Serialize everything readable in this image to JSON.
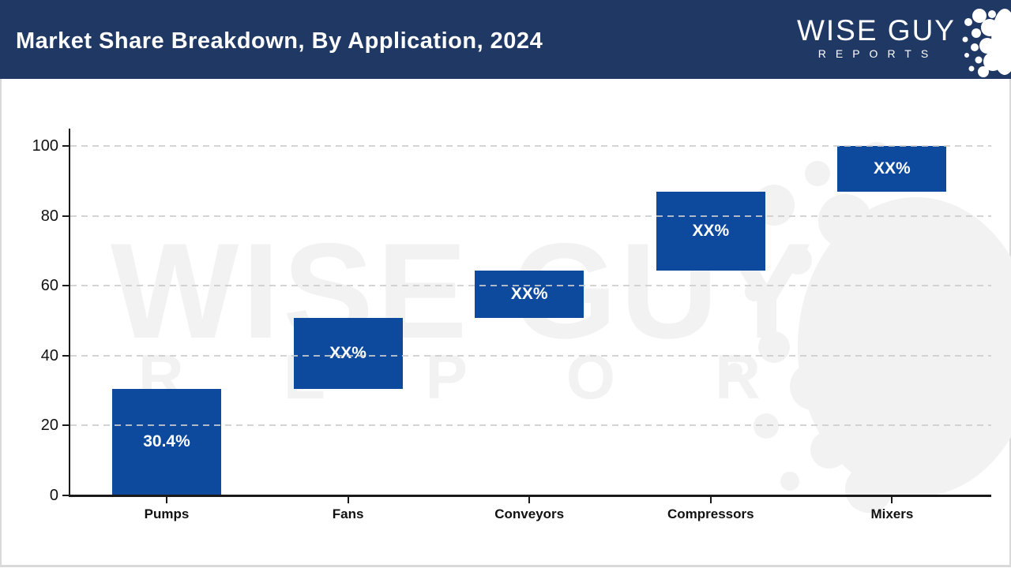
{
  "header": {
    "title": "Market Share Breakdown, By Application, 2024",
    "bg_color": "#1f3864",
    "logo": {
      "line1": "WISE GUY",
      "line2": "REPORTS"
    }
  },
  "watermark": {
    "line1": "WISE GUY",
    "line2": "REPORTS"
  },
  "chart_data": {
    "type": "bar",
    "subtype": "waterfall-floating-bars",
    "title": "Market Share Breakdown, By Application, 2024",
    "categories": [
      "Pumps",
      "Fans",
      "Conveyors",
      "Compressors",
      "Mixers"
    ],
    "segments": [
      {
        "category": "Pumps",
        "start": 0,
        "end": 30.4,
        "label": "30.4%"
      },
      {
        "category": "Fans",
        "start": 30.4,
        "end": 50.8,
        "label": "XX%"
      },
      {
        "category": "Conveyors",
        "start": 50.8,
        "end": 64.3,
        "label": "XX%"
      },
      {
        "category": "Compressors",
        "start": 64.3,
        "end": 87.0,
        "label": "XX%"
      },
      {
        "category": "Mixers",
        "start": 87.0,
        "end": 100,
        "label": "XX%"
      }
    ],
    "y_ticks": [
      0,
      20,
      40,
      60,
      80,
      100
    ],
    "ylim": [
      0,
      105
    ],
    "xlabel": "",
    "ylabel": "",
    "bar_color": "#0d4a9e",
    "grid": "horizontal-dashed",
    "legend": "none"
  }
}
